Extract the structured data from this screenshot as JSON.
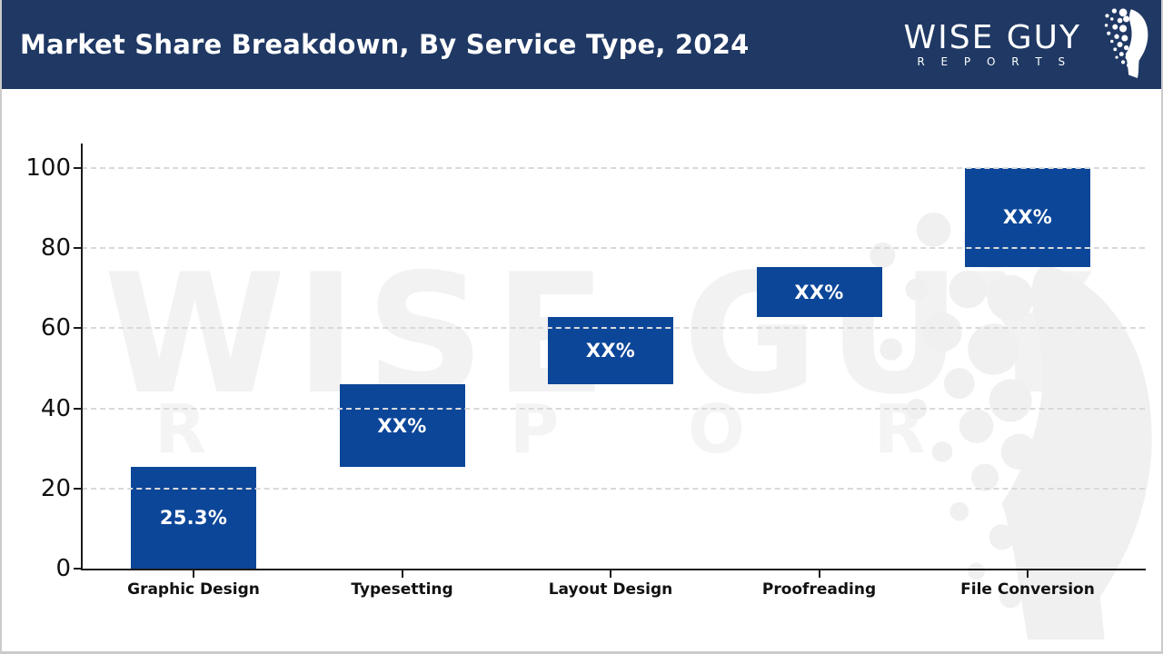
{
  "header": {
    "title": "Market Share Breakdown, By Service Type, 2024",
    "logo": {
      "wordmark": "WISE GUY",
      "subtitle": "R E P O R T S"
    },
    "bg_color": "#1F3864"
  },
  "watermark": {
    "line1": "WISE GUY",
    "line2": "R E P O R T S"
  },
  "chart_data": {
    "type": "bar",
    "variant": "waterfall",
    "title": "Market Share Breakdown, By Service Type, 2024",
    "categories": [
      "Graphic Design",
      "Typesetting",
      "Layout Design",
      "Proofreading",
      "File Conversion"
    ],
    "bars": [
      {
        "category": "Graphic Design",
        "start": 0,
        "end": 25.3,
        "label": "25.3%"
      },
      {
        "category": "Typesetting",
        "start": 25.3,
        "end": 46.1,
        "label": "XX%"
      },
      {
        "category": "Layout Design",
        "start": 46.1,
        "end": 62.8,
        "label": "XX%"
      },
      {
        "category": "Proofreading",
        "start": 62.8,
        "end": 75.3,
        "label": "XX%"
      },
      {
        "category": "File Conversion",
        "start": 75.3,
        "end": 100,
        "label": "XX%"
      }
    ],
    "y_ticks": [
      0,
      20,
      40,
      60,
      80,
      100
    ],
    "ylim": [
      0,
      105.7
    ],
    "xlabel": "",
    "ylabel": "",
    "grid": true,
    "gridline_style": "dashed",
    "legend": "none",
    "bar_color": "#0C4699",
    "bar_label_color": "#FFFFFF"
  }
}
